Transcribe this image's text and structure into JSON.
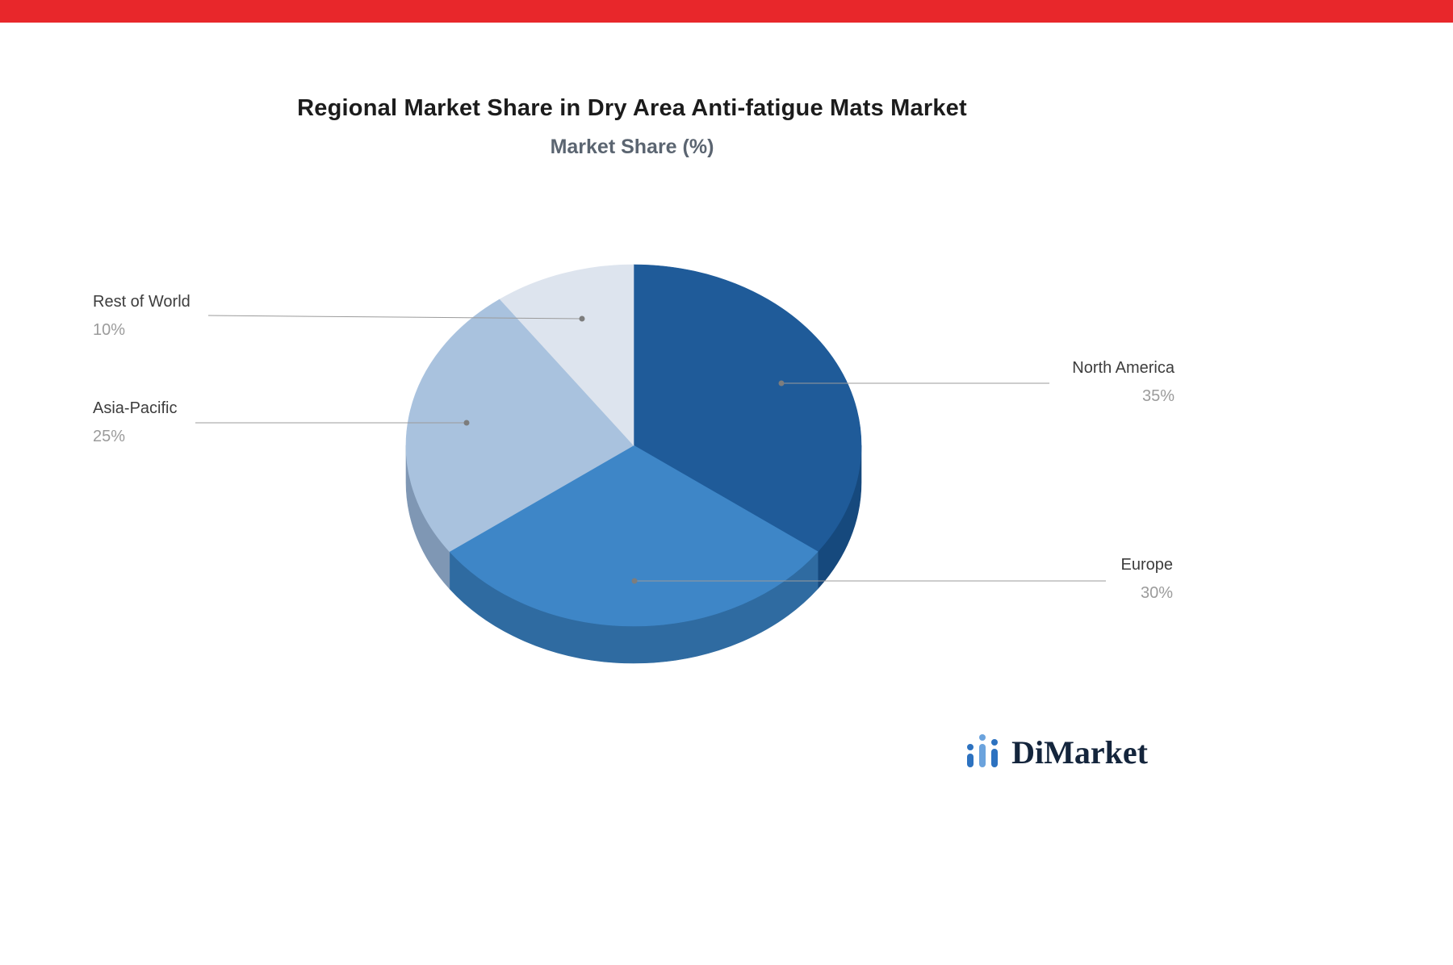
{
  "page": {
    "accent_bar_color": "#e8272b",
    "background": "#ffffff"
  },
  "header": {
    "title": "Regional Market Share in Dry Area Anti-fatigue Mats Market",
    "subtitle": "Market Share (%)"
  },
  "chart_data": {
    "type": "pie",
    "style": "3d",
    "title": "Regional Market Share in Dry Area Anti-fatigue Mats Market",
    "subtitle": "Market Share (%)",
    "unit": "%",
    "legend_position": "outside-leader-lines",
    "slices": [
      {
        "label": "North America",
        "value": 35,
        "value_label": "35%",
        "color": "#1f5b99",
        "side_color": "#16497d"
      },
      {
        "label": "Europe",
        "value": 30,
        "value_label": "30%",
        "color": "#3e86c7",
        "side_color": "#2f6ba1"
      },
      {
        "label": "Asia-Pacific",
        "value": 25,
        "value_label": "25%",
        "color": "#a9c2de",
        "side_color": "#7f97b4"
      },
      {
        "label": "Rest of World",
        "value": 10,
        "value_label": "10%",
        "color": "#dde4ee",
        "side_color": "#b0bccd"
      }
    ]
  },
  "branding": {
    "logo_text": "DiMarket",
    "logo_icon": "bar-chart-icon",
    "text_color": "#14253c",
    "icon_color": "#2d72c0"
  }
}
